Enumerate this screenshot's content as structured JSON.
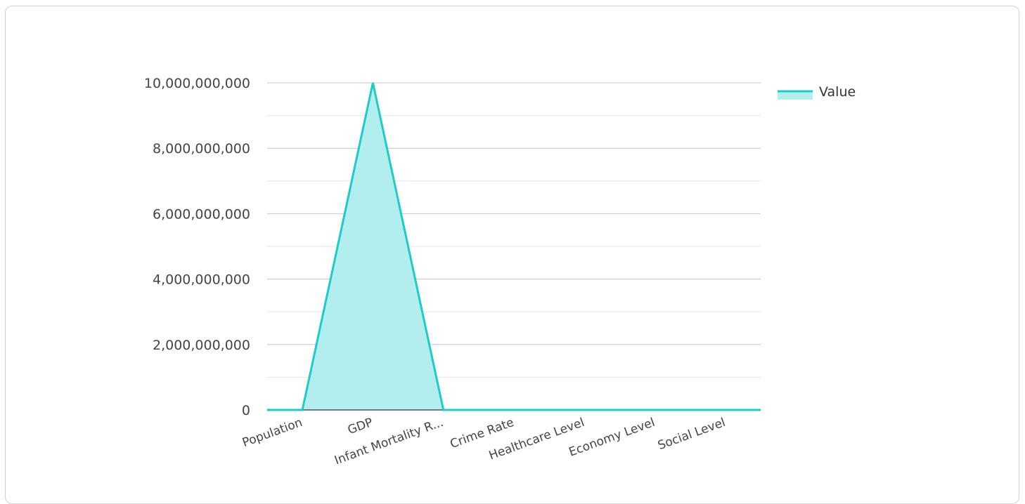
{
  "chart_data": {
    "type": "area",
    "categories": [
      "Population",
      "GDP",
      "Infant Mortality R...",
      "Crime Rate",
      "Healthcare Level",
      "Economy Level",
      "Social Level"
    ],
    "series": [
      {
        "name": "Value",
        "values": [
          0,
          10000000000,
          0,
          0,
          0,
          0,
          0
        ]
      }
    ],
    "ylim": [
      0,
      10000000000
    ],
    "yticks": [
      0,
      2000000000,
      4000000000,
      6000000000,
      8000000000,
      10000000000
    ],
    "ytick_labels": [
      "0",
      "2,000,000,000",
      "4,000,000,000",
      "6,000,000,000",
      "8,000,000,000",
      "10,000,000,000"
    ],
    "grid": true,
    "legend": "top-right",
    "colors": {
      "line": "#1ecbcb",
      "fill": "#b2eeee"
    }
  }
}
